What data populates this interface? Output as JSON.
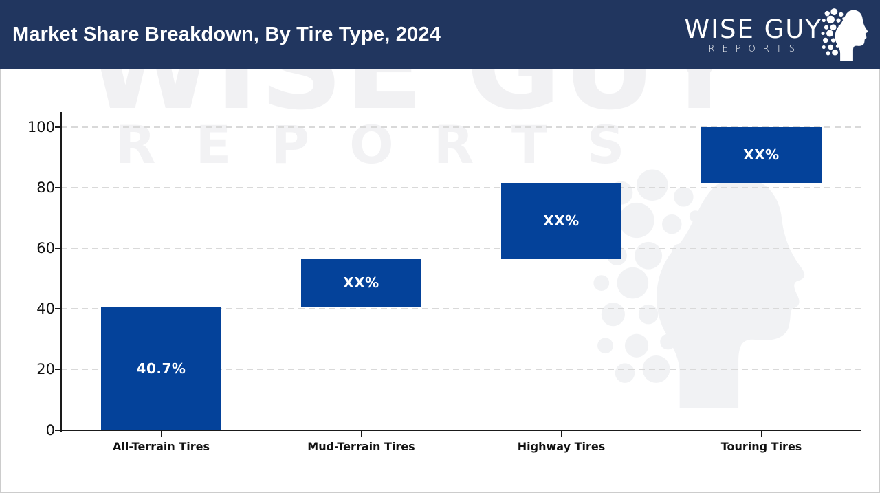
{
  "header": {
    "title": "Market Share Breakdown, By Tire Type, 2024",
    "brand": {
      "name_top": "WISE GUY",
      "name_bottom": "REPORTS"
    },
    "bg_color": "#21365F"
  },
  "watermark": {
    "line1": "WISE GUY",
    "line2": "REPORTS"
  },
  "chart_data": {
    "type": "bar",
    "subtype": "waterfall",
    "title": "Market Share Breakdown, By Tire Type, 2024",
    "categories": [
      "All-Terrain Tires",
      "Mud-Terrain Tires",
      "Highway Tires",
      "Touring Tires"
    ],
    "segments": [
      {
        "category": "All-Terrain Tires",
        "start": 0,
        "end": 40.7,
        "value": 40.7,
        "label": "40.7%"
      },
      {
        "category": "Mud-Terrain Tires",
        "start": 40.7,
        "end": 56.7,
        "value": 16.0,
        "label": "XX%"
      },
      {
        "category": "Highway Tires",
        "start": 56.7,
        "end": 81.7,
        "value": 25.0,
        "label": "XX%"
      },
      {
        "category": "Touring Tires",
        "start": 81.7,
        "end": 100,
        "value": 18.3,
        "label": "XX%"
      }
    ],
    "xlabel": "",
    "ylabel": "",
    "ylim": [
      0,
      105
    ],
    "yticks": [
      0,
      20,
      40,
      60,
      80,
      100
    ],
    "grid": "horizontal-dashed",
    "legend": "none",
    "bar_color": "#04429A",
    "bar_label_color": "#ffffff",
    "gridline_color": "#d9d9d9",
    "axis_color": "#1a1a1a"
  }
}
